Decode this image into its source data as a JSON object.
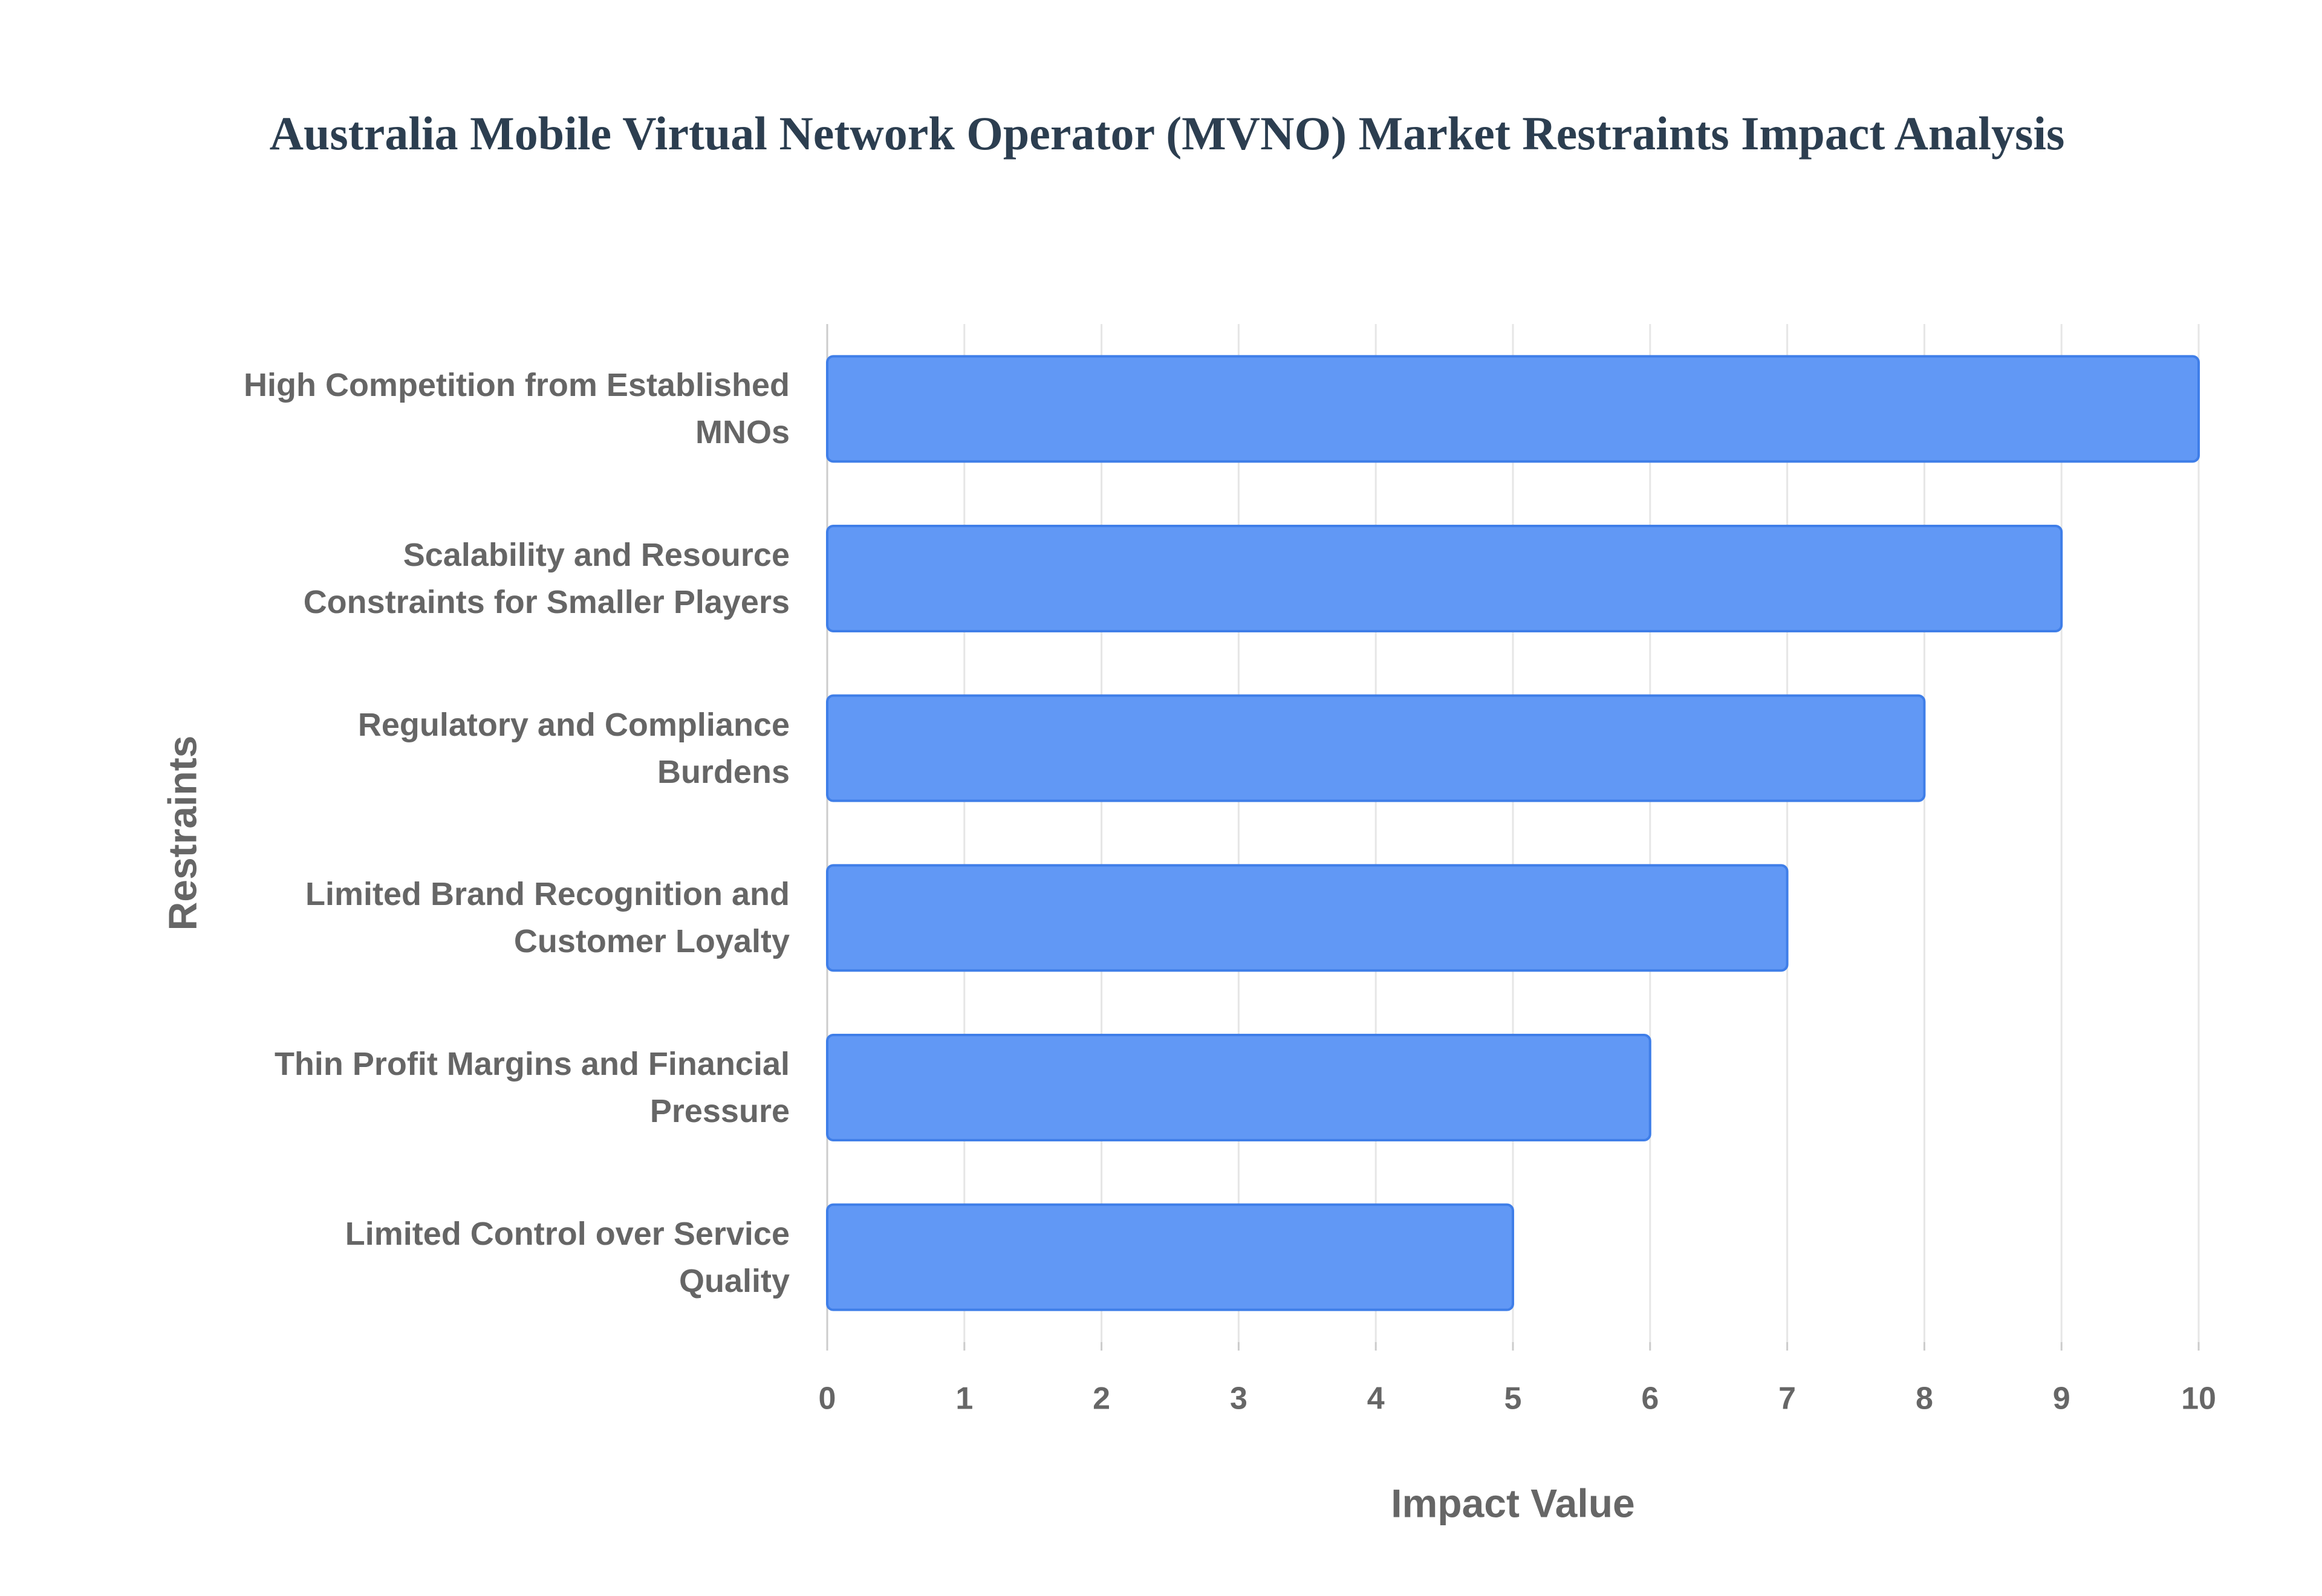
{
  "chart_data": {
    "type": "bar",
    "orientation": "horizontal",
    "title": "Australia Mobile Virtual Network Operator (MVNO) Market Restraints Impact Analysis",
    "x_label": "Impact Value",
    "y_label": "Restraints",
    "categories": [
      "High Competition from Established MNOs",
      "Scalability and Resource Constraints for Smaller Players",
      "Regulatory and Compliance Burdens",
      "Limited Brand Recognition and Customer Loyalty",
      "Thin Profit Margins and Financial Pressure",
      "Limited Control over Service Quality"
    ],
    "values": [
      10,
      9,
      8,
      7,
      6,
      5
    ],
    "color": "#6198f5",
    "xlim": [
      0,
      10
    ],
    "xticks": [
      0,
      1,
      2,
      3,
      4,
      5,
      6,
      7,
      8,
      9,
      10
    ],
    "grid": true
  }
}
